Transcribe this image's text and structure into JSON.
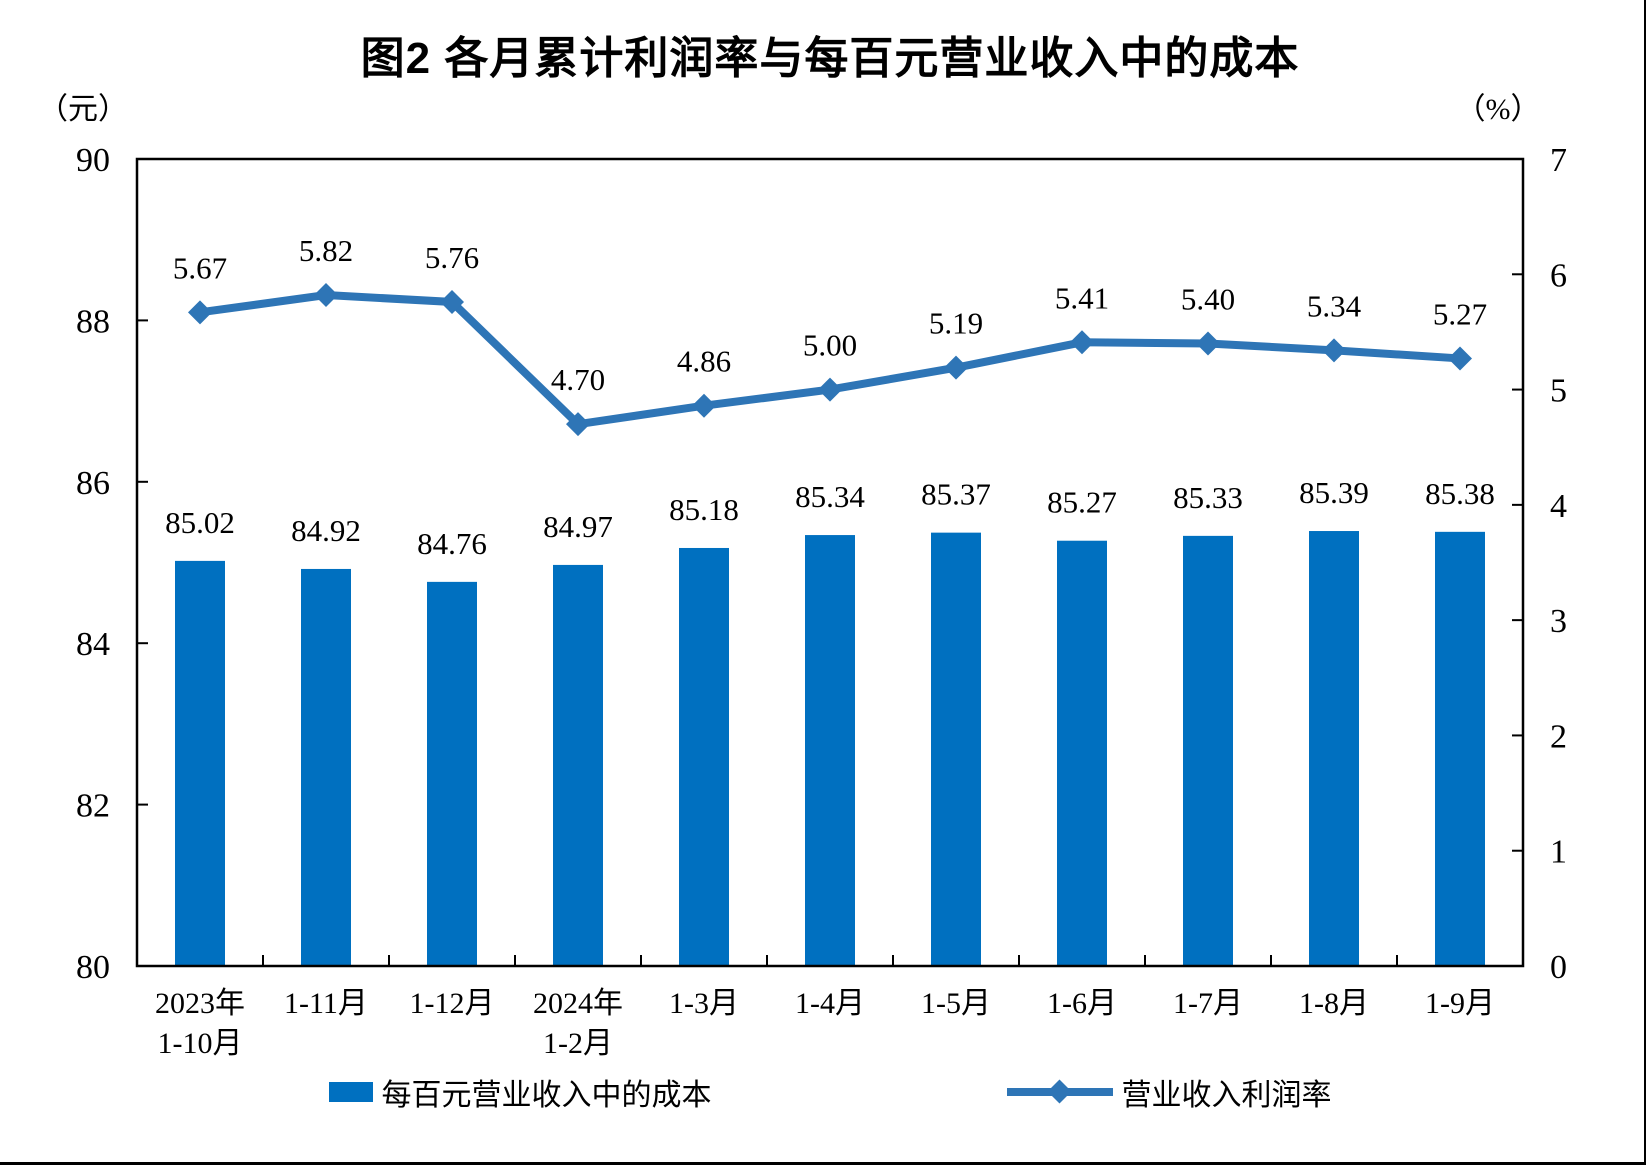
{
  "title": "图2 各月累计利润率与每百元营业收入中的成本",
  "chart_data": {
    "type": "combo",
    "categories": [
      "2023年\n1-10月",
      "1-11月",
      "1-12月",
      "2024年\n1-2月",
      "1-3月",
      "1-4月",
      "1-5月",
      "1-6月",
      "1-7月",
      "1-8月",
      "1-9月"
    ],
    "series": [
      {
        "name": "每百元营业收入中的成本",
        "type": "bar",
        "axis": "left",
        "color": "#0070C0",
        "values": [
          85.02,
          84.92,
          84.76,
          84.97,
          85.18,
          85.34,
          85.37,
          85.27,
          85.33,
          85.39,
          85.38
        ]
      },
      {
        "name": "营业收入利润率",
        "type": "line",
        "axis": "right",
        "color": "#2E75B6",
        "marker": "diamond",
        "values": [
          5.67,
          5.82,
          5.76,
          4.7,
          4.86,
          5.0,
          5.19,
          5.41,
          5.4,
          5.34,
          5.27
        ]
      }
    ],
    "left_axis": {
      "unit": "（元）",
      "min": 80,
      "max": 90,
      "ticks": [
        80,
        82,
        84,
        86,
        88,
        90
      ]
    },
    "right_axis": {
      "unit": "（%）",
      "min": 0,
      "max": 7,
      "ticks": [
        0,
        1,
        2,
        3,
        4,
        5,
        6,
        7
      ]
    },
    "grid": false,
    "legend_position": "bottom",
    "value_label_decimals": 2,
    "axis_color": "#000000"
  }
}
